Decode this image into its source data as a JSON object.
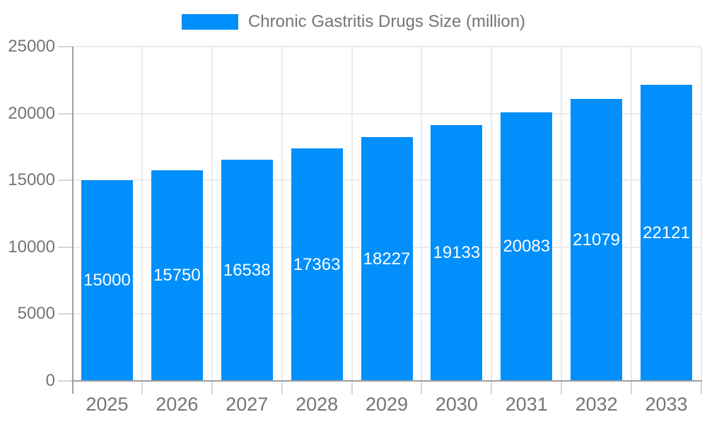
{
  "legend": {
    "label": "Chronic Gastritis Drugs Size (million)"
  },
  "chart_data": {
    "type": "bar",
    "title": "Chronic Gastritis Drugs Size (million)",
    "categories": [
      "2025",
      "2026",
      "2027",
      "2028",
      "2029",
      "2030",
      "2031",
      "2032",
      "2033"
    ],
    "series": [
      {
        "name": "Chronic Gastritis Drugs Size (million)",
        "values": [
          15000,
          15750,
          16538,
          17363,
          18227,
          19133,
          20083,
          21079,
          22121
        ]
      }
    ],
    "xlabel": "",
    "ylabel": "",
    "ylim": [
      0,
      25000
    ],
    "yticks": [
      0,
      5000,
      10000,
      15000,
      20000,
      25000
    ],
    "grid": true,
    "legend_position": "top-center",
    "value_label_position": "inside-center",
    "colors": {
      "bar": "#008ffb",
      "value_label": "#ffffff",
      "axis": "#9e9e9e",
      "gridline": "#ebebeb",
      "tick": "#d6d6d6",
      "text": "#757575",
      "background": "#ffffff"
    }
  }
}
